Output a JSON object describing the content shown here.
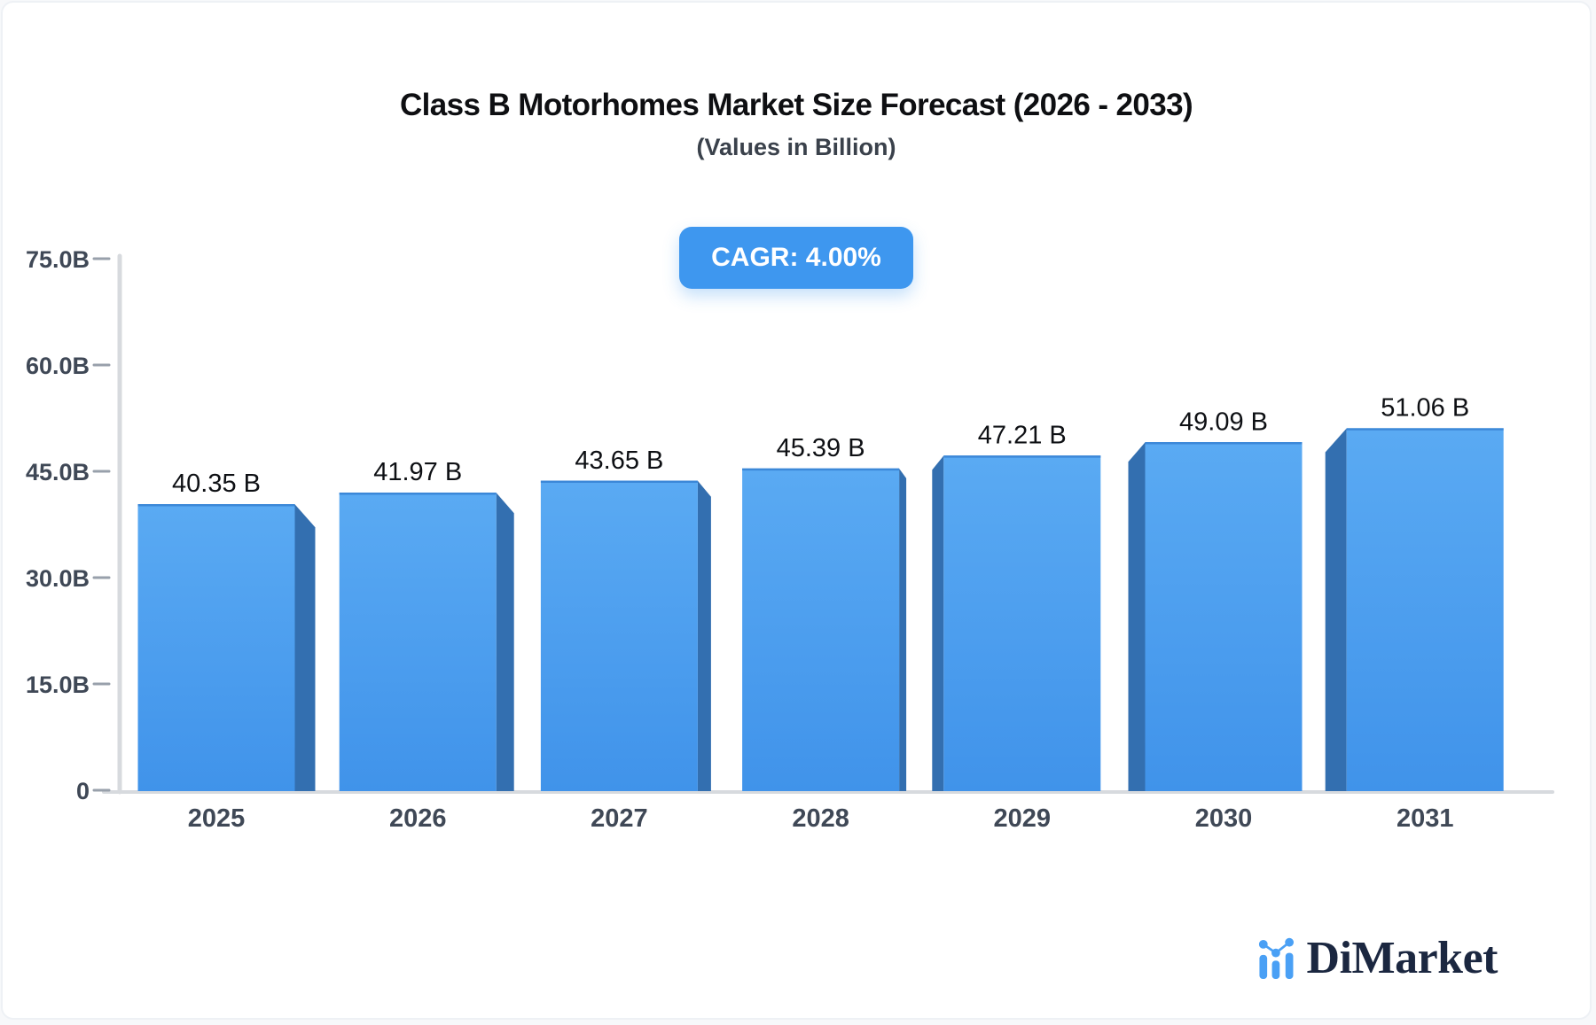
{
  "header": {
    "title": "Class B Motorhomes Market Size Forecast (2026 - 2033)",
    "subtitle": "(Values in Billion)",
    "cagr_badge": "CAGR: 4.00%"
  },
  "chart_data": {
    "type": "bar",
    "title": "Class B Motorhomes Market Size Forecast (2026 - 2033)",
    "subtitle": "(Values in Billion)",
    "cagr": "4.00%",
    "categories": [
      "2025",
      "2026",
      "2027",
      "2028",
      "2029",
      "2030",
      "2031"
    ],
    "values": [
      40.35,
      41.97,
      43.65,
      45.39,
      47.21,
      49.09,
      51.06
    ],
    "bar_labels": [
      "40.35 B",
      "41.97 B",
      "43.65 B",
      "45.39 B",
      "47.21 B",
      "49.09 B",
      "51.06 B"
    ],
    "ylim": [
      0,
      75
    ],
    "yticks": [
      0,
      15,
      30,
      45,
      60,
      75
    ],
    "ytick_labels": [
      "0",
      "15.0B",
      "30.0B",
      "45.0B",
      "60.0B",
      "75.0B"
    ],
    "xlabel": "",
    "ylabel": "",
    "grid": false,
    "legend": false,
    "bar_style": "3d-extruded",
    "colors": {
      "bar_face_top": "#5aaaf3",
      "bar_face_bottom": "#4093ea",
      "bar_top_edge": "#3c88d8",
      "bar_side": "#336fb0",
      "axis_line": "#d7dade",
      "tick_mark": "#98a0ab",
      "tick_label": "#3f4856",
      "value_label": "#0e1014",
      "badge_bg": "#3e97ef",
      "badge_text": "#ffffff"
    }
  },
  "branding": {
    "logo_text": "DiMarket",
    "logo_icon": "mini-bar-chart-with-dots",
    "logo_color_text": "#1b2740",
    "logo_color_icon": "#4aa0f5"
  }
}
